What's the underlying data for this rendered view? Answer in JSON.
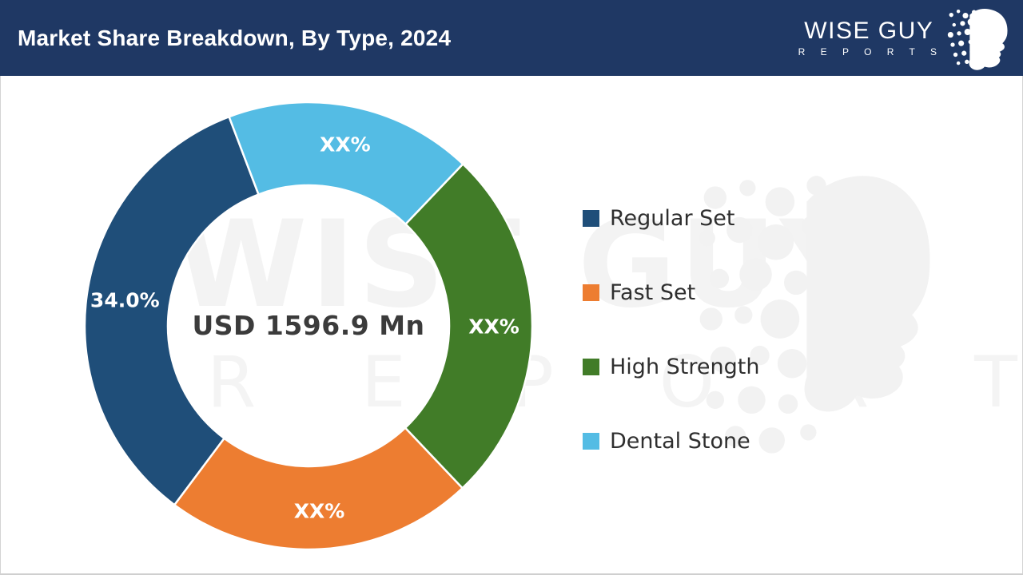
{
  "header": {
    "title": "Market Share Breakdown, By Type, 2024",
    "logo": {
      "name": "WISE GUY",
      "sub": "R E P O R T S"
    }
  },
  "watermark": {
    "line1": "WISE GUY",
    "line2": "R E P O R T S"
  },
  "chart_data": {
    "type": "pie",
    "subtype": "donut",
    "title": "Market Share Breakdown, By Type, 2024",
    "center_label": "USD 1596.9 Mn",
    "categories": [
      "Regular Set",
      "Fast Set",
      "High Strength",
      "Dental Stone"
    ],
    "values_pct": [
      34.0,
      22.3,
      25.8,
      17.9
    ],
    "value_labels": [
      "34.0%",
      "XX%",
      "XX%",
      "XX%"
    ],
    "colors": [
      "#1F4E79",
      "#ED7D31",
      "#417C28",
      "#54BCE4"
    ],
    "start_angle_deg": 110.8,
    "counterclockwise": true,
    "legend_position": "right",
    "label_text_color": "#ffffff",
    "center_label_color": "#3b3b3b"
  },
  "colors": {
    "header_bg": "#1F3864",
    "watermark": "#f3f3f3",
    "border": "#d4d4d4"
  }
}
